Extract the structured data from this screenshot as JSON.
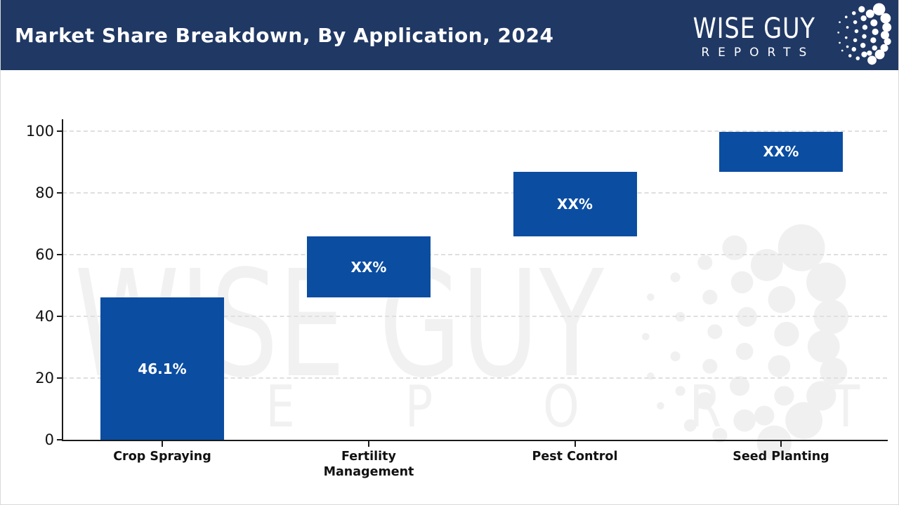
{
  "header": {
    "title": "Market Share Breakdown, By Application, 2024",
    "logo": {
      "line1": "WISE GUY",
      "line2": "REPORTS"
    }
  },
  "watermark": {
    "line1": "WISE GUY",
    "line2": "REPORTS"
  },
  "chart_data": {
    "type": "bar",
    "subtype": "waterfall",
    "title": "Market Share Breakdown, By Application, 2024",
    "categories": [
      "Crop Spraying",
      "Fertility Management",
      "Pest Control",
      "Seed Planting"
    ],
    "segments": [
      {
        "category": "Crop Spraying",
        "start": 0,
        "end": 46.1,
        "label": "46.1%"
      },
      {
        "category": "Fertility Management",
        "start": 46.1,
        "end": 65.9,
        "label": "XX%"
      },
      {
        "category": "Pest Control",
        "start": 65.9,
        "end": 86.8,
        "label": "XX%"
      },
      {
        "category": "Seed Planting",
        "start": 86.8,
        "end": 99.8,
        "label": "XX%"
      }
    ],
    "bar_color": "#0B4DA1",
    "value_label_color": "#ffffff",
    "ylim": [
      0,
      104
    ],
    "yticks": [
      0,
      20,
      40,
      60,
      80,
      100
    ],
    "grid": "horizontal-dashed",
    "legend": false,
    "xlabel": "",
    "ylabel": ""
  }
}
